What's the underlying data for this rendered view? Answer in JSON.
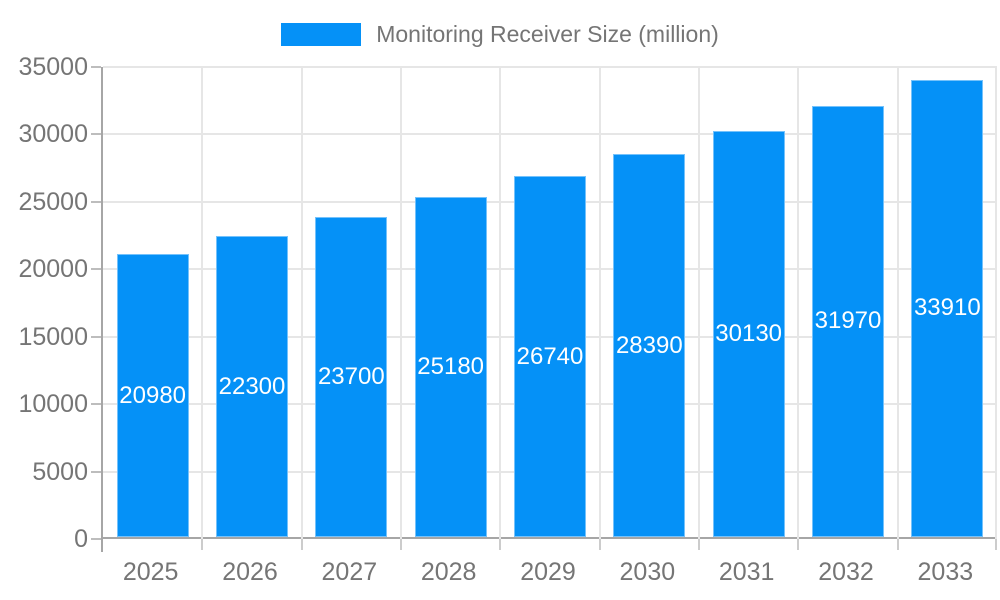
{
  "chart_data": {
    "type": "bar",
    "title": "Monitoring Receiver Size (million)",
    "categories": [
      "2025",
      "2026",
      "2027",
      "2028",
      "2029",
      "2030",
      "2031",
      "2032",
      "2033"
    ],
    "values": [
      20980,
      22300,
      23700,
      25180,
      26740,
      28390,
      30130,
      31970,
      33910
    ],
    "xlabel": "",
    "ylabel": "",
    "ylim": [
      0,
      35000
    ],
    "ytick_step": 5000,
    "ytick_labels": [
      "0",
      "5000",
      "10000",
      "15000",
      "20000",
      "25000",
      "30000",
      "35000"
    ],
    "grid": true,
    "legend_position": "top",
    "bar_labels_inside": true,
    "colors": {
      "bar": "#0591f7",
      "bar_label": "#ffffff",
      "axis_line": "#a6a6a6",
      "gridline": "#e6e6e6",
      "axis_text": "#757575"
    }
  }
}
